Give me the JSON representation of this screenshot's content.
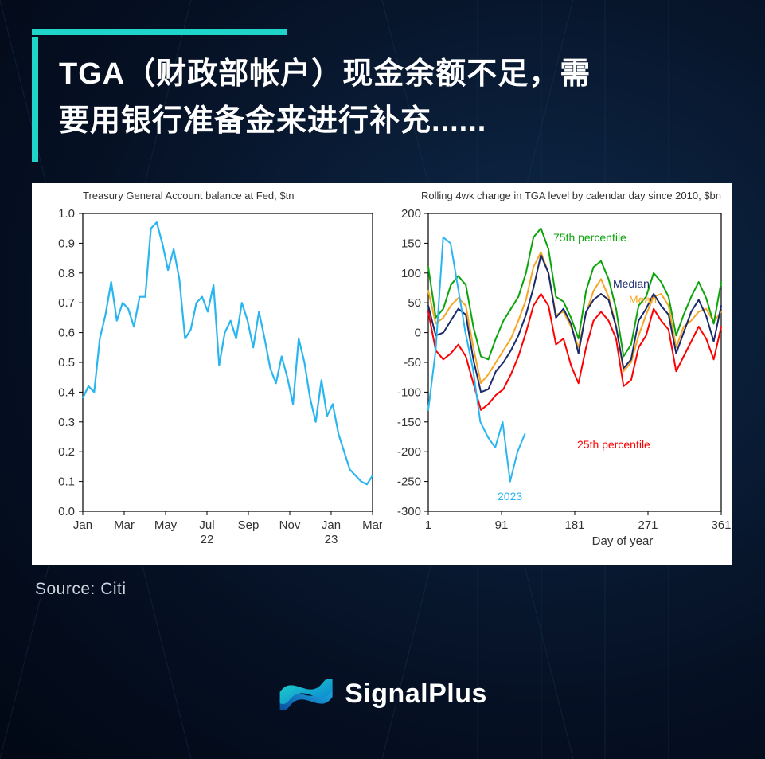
{
  "background": {
    "grad_inner": "#0e2a4a",
    "grad_mid": "#061125",
    "grad_outer": "#020814",
    "line_color": "#1a3a5c"
  },
  "header": {
    "accent_color": "#1fd5c9",
    "title_line1": "TGA（财政部帐户）现金余额不足，需",
    "title_line2": "要用银行准备金来进行补充......",
    "title_fontsize": 38,
    "title_color": "#ffffff"
  },
  "source_label": "Source: Citi",
  "logo_text": "SignalPlus",
  "chart_left": {
    "title": "Treasury General Account balance at Fed, $tn",
    "type": "line",
    "background_color": "#ffffff",
    "axis_color": "#000000",
    "text_color": "#333333",
    "line_color": "#29b6f0",
    "line_width": 2.2,
    "ylim": [
      0.0,
      1.0
    ],
    "ytick_step": 0.1,
    "x_ticks": [
      "Jan",
      "Mar",
      "May",
      "Jul",
      "Sep",
      "Nov",
      "Jan",
      "Mar"
    ],
    "x_sub_ticks": {
      "3": "22",
      "6": "23"
    },
    "label_fontsize": 15,
    "data": [
      0.38,
      0.42,
      0.4,
      0.58,
      0.66,
      0.77,
      0.64,
      0.7,
      0.68,
      0.62,
      0.72,
      0.72,
      0.95,
      0.97,
      0.9,
      0.81,
      0.88,
      0.78,
      0.58,
      0.61,
      0.7,
      0.72,
      0.67,
      0.76,
      0.49,
      0.6,
      0.64,
      0.58,
      0.7,
      0.64,
      0.55,
      0.67,
      0.58,
      0.48,
      0.43,
      0.52,
      0.45,
      0.36,
      0.58,
      0.5,
      0.38,
      0.3,
      0.44,
      0.32,
      0.36,
      0.26,
      0.2,
      0.14,
      0.12,
      0.1,
      0.09,
      0.12
    ]
  },
  "chart_right": {
    "title": "Rolling 4wk change in TGA level by calendar day since 2010, $bn",
    "type": "line",
    "background_color": "#ffffff",
    "axis_color": "#000000",
    "text_color": "#333333",
    "ylim": [
      -300,
      200
    ],
    "ytick_step": 50,
    "xlim": [
      1,
      361
    ],
    "x_ticks": [
      1,
      91,
      181,
      271,
      361
    ],
    "xlabel": "Day of year",
    "label_fontsize": 15,
    "colors": {
      "p75": "#0aa50a",
      "median": "#1a2a6c",
      "mean": "#f5a623",
      "p25": "#ff0000",
      "y2023": "#29b6f0"
    },
    "line_width": 2,
    "annotations": {
      "p75": {
        "text": "75th percentile",
        "color": "#0aa50a"
      },
      "median": {
        "text": "Median",
        "color": "#1a2a6c"
      },
      "mean": {
        "text": "Mean",
        "color": "#f5a623"
      },
      "p25": {
        "text": "25th percentile",
        "color": "#ff0000"
      },
      "y2023": {
        "text": "2023",
        "color": "#29b6f0"
      }
    },
    "series": {
      "p75": [
        110,
        25,
        40,
        80,
        95,
        80,
        10,
        -40,
        -45,
        -10,
        20,
        40,
        60,
        100,
        160,
        175,
        140,
        60,
        52,
        25,
        -10,
        70,
        110,
        120,
        90,
        40,
        -40,
        -20,
        45,
        60,
        100,
        85,
        60,
        -5,
        30,
        60,
        85,
        58,
        15,
        85
      ],
      "median": [
        45,
        -5,
        0,
        20,
        40,
        30,
        -45,
        -100,
        -95,
        -65,
        -50,
        -30,
        -5,
        30,
        75,
        130,
        100,
        25,
        40,
        15,
        -35,
        35,
        55,
        65,
        55,
        10,
        -60,
        -45,
        20,
        40,
        65,
        45,
        30,
        -35,
        0,
        35,
        55,
        28,
        -15,
        45
      ],
      "mean": [
        70,
        15,
        25,
        45,
        58,
        45,
        -25,
        -85,
        -70,
        -50,
        -30,
        -10,
        20,
        55,
        110,
        135,
        100,
        30,
        35,
        10,
        -25,
        32,
        70,
        90,
        60,
        12,
        -65,
        -50,
        -5,
        30,
        60,
        65,
        45,
        -25,
        10,
        20,
        35,
        40,
        18,
        35
      ],
      "p25": [
        35,
        -30,
        -45,
        -35,
        -20,
        -40,
        -85,
        -130,
        -120,
        -105,
        -95,
        -70,
        -40,
        0,
        45,
        65,
        45,
        -20,
        -10,
        -55,
        -85,
        -25,
        20,
        35,
        20,
        -10,
        -90,
        -80,
        -25,
        -5,
        40,
        20,
        5,
        -65,
        -40,
        -15,
        10,
        -10,
        -45,
        10
      ],
      "y2023": [
        -130,
        -30,
        160,
        150,
        75,
        0,
        -60,
        -150,
        -175,
        -193,
        -150,
        -250,
        -200,
        -170
      ]
    }
  }
}
